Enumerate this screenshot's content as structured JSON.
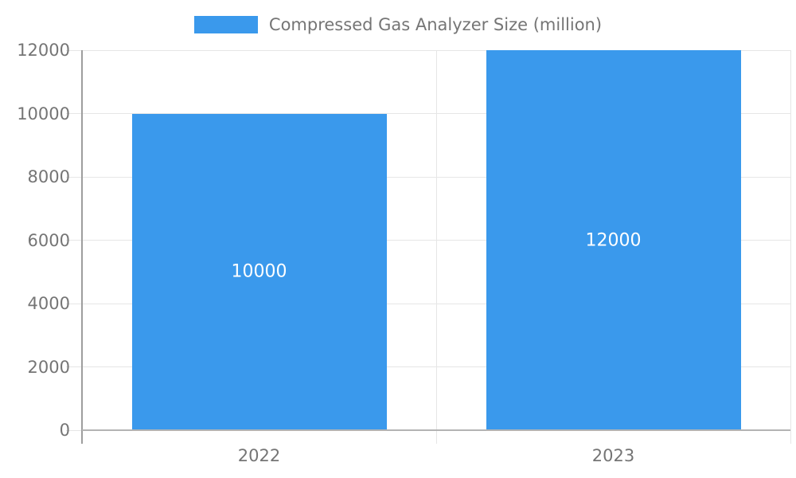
{
  "chart_data": {
    "type": "bar",
    "title": "",
    "legend": {
      "label": "Compressed Gas Analyzer Size (million)",
      "position": "top"
    },
    "categories": [
      "2022",
      "2023"
    ],
    "series": [
      {
        "name": "Compressed Gas Analyzer Size (million)",
        "values": [
          10000,
          12000
        ]
      }
    ],
    "data_labels": [
      "10000",
      "12000"
    ],
    "ylim": [
      0,
      12000
    ],
    "yticks": [
      0,
      2000,
      4000,
      6000,
      8000,
      10000,
      12000
    ],
    "ytick_labels": [
      "0",
      "2000",
      "4000",
      "6000",
      "8000",
      "10000",
      "12000"
    ],
    "xlabel": "",
    "ylabel": "",
    "grid": "horizontal-on, category-boundary-verticals-on",
    "colors": {
      "bar": "#3A99EC",
      "legend_text": "#757575",
      "axis_text": "#757575",
      "gridline": "#e6e6e6",
      "y_axis_line": "#9e9e9e",
      "x_axis_line": "#b3b3b3",
      "data_label_text": "#ffffff",
      "background": "#ffffff"
    }
  }
}
